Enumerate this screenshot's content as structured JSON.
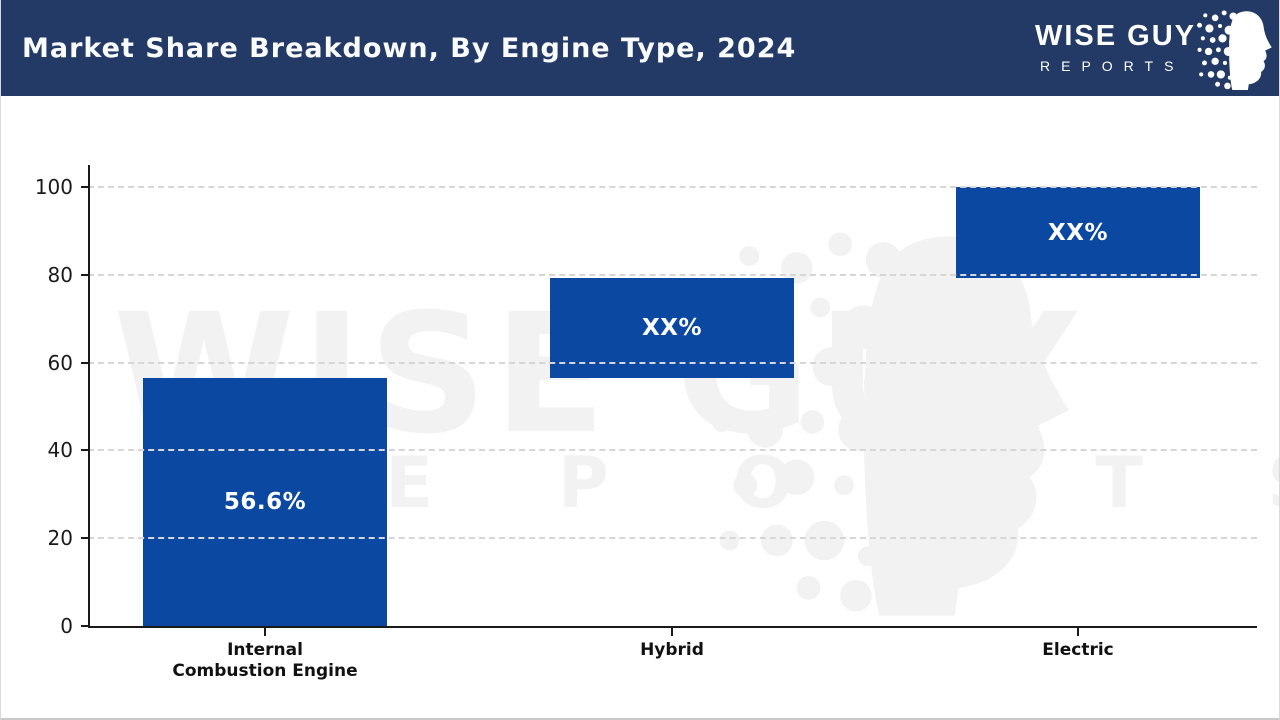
{
  "header": {
    "title": "Market Share Breakdown, By Engine Type, 2024",
    "logo": {
      "line1": "WISE GUY",
      "line2": "REPORTS"
    }
  },
  "watermark": {
    "line1": "WISE GUY",
    "line2": "R E P O R T S"
  },
  "colors": {
    "header_bg": "#233a66",
    "bar": "#0b48a2",
    "bar_label": "#ffffff",
    "gridline": "#d6d6d6",
    "axis": "#1a1a1a",
    "watermark": "#f2f2f3",
    "page_bg": "#ffffff"
  },
  "chart_data": {
    "type": "bar",
    "subtype": "floating-breakdown (segments stack to 100%)",
    "title": "Market Share Breakdown, By Engine Type, 2024",
    "categories": [
      "Internal\nCombustion Engine",
      "Hybrid",
      "Electric"
    ],
    "bars": [
      {
        "category": "Internal Combustion Engine",
        "start": 0,
        "end": 56.6,
        "label": "56.6%"
      },
      {
        "category": "Hybrid",
        "start": 56.6,
        "end": 79.2,
        "label": "XX%"
      },
      {
        "category": "Electric",
        "start": 79.2,
        "end": 100,
        "label": "XX%"
      }
    ],
    "ylabel": "",
    "xlabel": "",
    "yticks": [
      0,
      20,
      40,
      60,
      80,
      100
    ],
    "ylim": [
      0,
      105
    ],
    "grid": "horizontal dashed, drawn over bars",
    "legend": false
  }
}
